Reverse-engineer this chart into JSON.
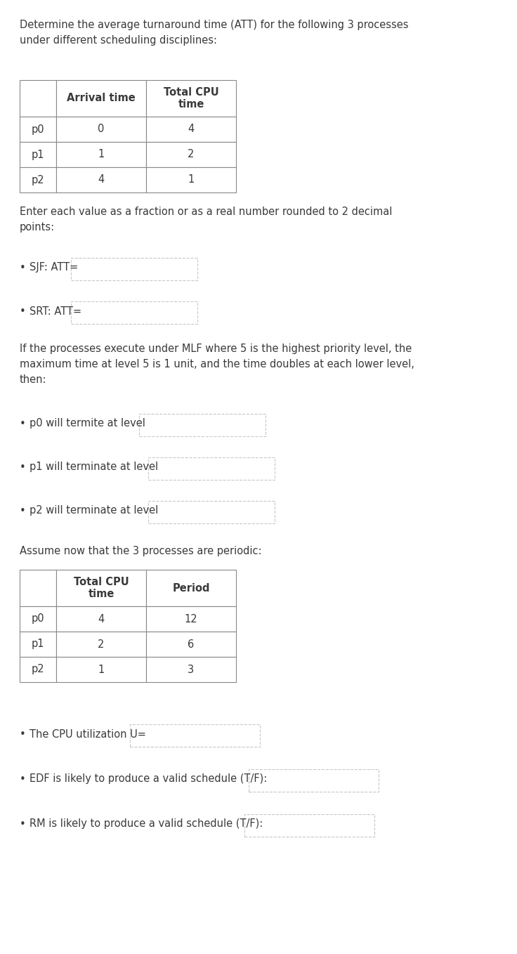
{
  "bg_color": "#ffffff",
  "text_color": "#3a3a3a",
  "title_text": "Determine the average turnaround time (ATT) for the following 3 processes\nunder different scheduling disciplines:",
  "table1_headers": [
    "",
    "Arrival time",
    "Total CPU\ntime"
  ],
  "table1_rows": [
    [
      "p0",
      "0",
      "4"
    ],
    [
      "p1",
      "1",
      "2"
    ],
    [
      "p2",
      "4",
      "1"
    ]
  ],
  "instruction_text": "Enter each value as a fraction or as a real number rounded to 2 decimal\npoints:",
  "bullets1": [
    [
      "SJF: ATT=",
      true
    ],
    [
      "SRT: ATT=",
      true
    ]
  ],
  "mlf_text": "If the processes execute under MLF where 5 is the highest priority level, the\nmaximum time at level 5 is 1 unit, and the time doubles at each lower level,\nthen:",
  "bullets2": [
    [
      "p0 will termite at level",
      true
    ],
    [
      "p1 will terminate at level",
      true
    ],
    [
      "p2 will terminate at level",
      true
    ]
  ],
  "periodic_text": "Assume now that the 3 processes are periodic:",
  "table2_headers": [
    "",
    "Total CPU\ntime",
    "Period"
  ],
  "table2_rows": [
    [
      "p0",
      "4",
      "12"
    ],
    [
      "p1",
      "2",
      "6"
    ],
    [
      "p2",
      "1",
      "3"
    ]
  ],
  "bullets3": [
    [
      "The CPU utilization U=",
      true
    ],
    [
      "EDF is likely to produce a valid schedule (T/F):",
      true
    ],
    [
      "RM is likely to produce a valid schedule (T/F):",
      true
    ]
  ],
  "input_box_color": "#ffffff",
  "input_box_border": "#c8c8c8",
  "table_border": "#888888",
  "font_size": 10.5,
  "font_size_table": 10.5
}
